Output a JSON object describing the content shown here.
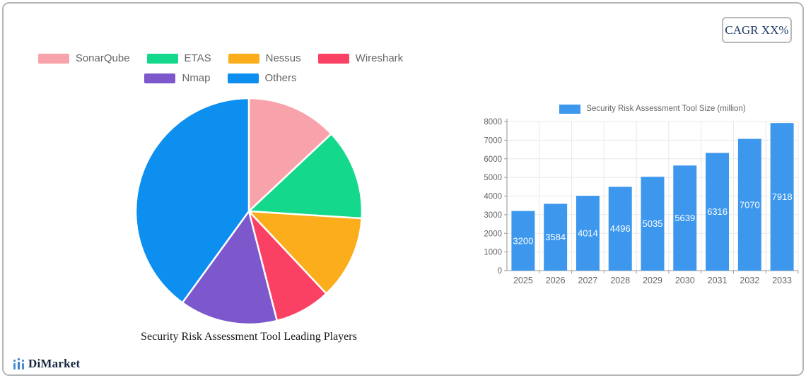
{
  "card": {
    "cagr_badge": "CAGR XX%",
    "brand": "DiMarket"
  },
  "colors": {
    "bar_blue": "#3c97ed",
    "axis": "#aaaaaa",
    "tick": "#999999",
    "grid": "#e8e8e8",
    "axis_label": "#666666",
    "value_label": "#ffffff",
    "badge_text": "#1d3a66",
    "brand_icon_blue": "#4a8fd6"
  },
  "chart_data": [
    {
      "type": "pie",
      "title": "Security Risk Assessment Tool Leading Players",
      "legend_position": "top",
      "direction": "clockwise",
      "start_angle_deg": 0,
      "series": [
        {
          "name": "SonarQube",
          "value": 13,
          "color": "#f8a3ab"
        },
        {
          "name": "ETAS",
          "value": 13,
          "color": "#14d98c"
        },
        {
          "name": "Nessus",
          "value": 12,
          "color": "#fbad1c"
        },
        {
          "name": "Wireshark",
          "value": 8,
          "color": "#fb4163"
        },
        {
          "name": "Nmap",
          "value": 14,
          "color": "#7d58cc"
        },
        {
          "name": "Others",
          "value": 40,
          "color": "#0d8ff0"
        }
      ]
    },
    {
      "type": "bar",
      "legend_label": "Security Risk Assessment Tool Size (million)",
      "bar_color": "#3c97ed",
      "categories": [
        "2025",
        "2026",
        "2027",
        "2028",
        "2029",
        "2030",
        "2031",
        "2032",
        "2033"
      ],
      "values": [
        3200,
        3584,
        4014,
        4496,
        5035,
        5639,
        6316,
        7070,
        7918
      ],
      "ylim": [
        0,
        8000
      ],
      "ytick_step": 1000,
      "grid": true,
      "value_labels": "inside-center",
      "legend_position": "top"
    }
  ]
}
